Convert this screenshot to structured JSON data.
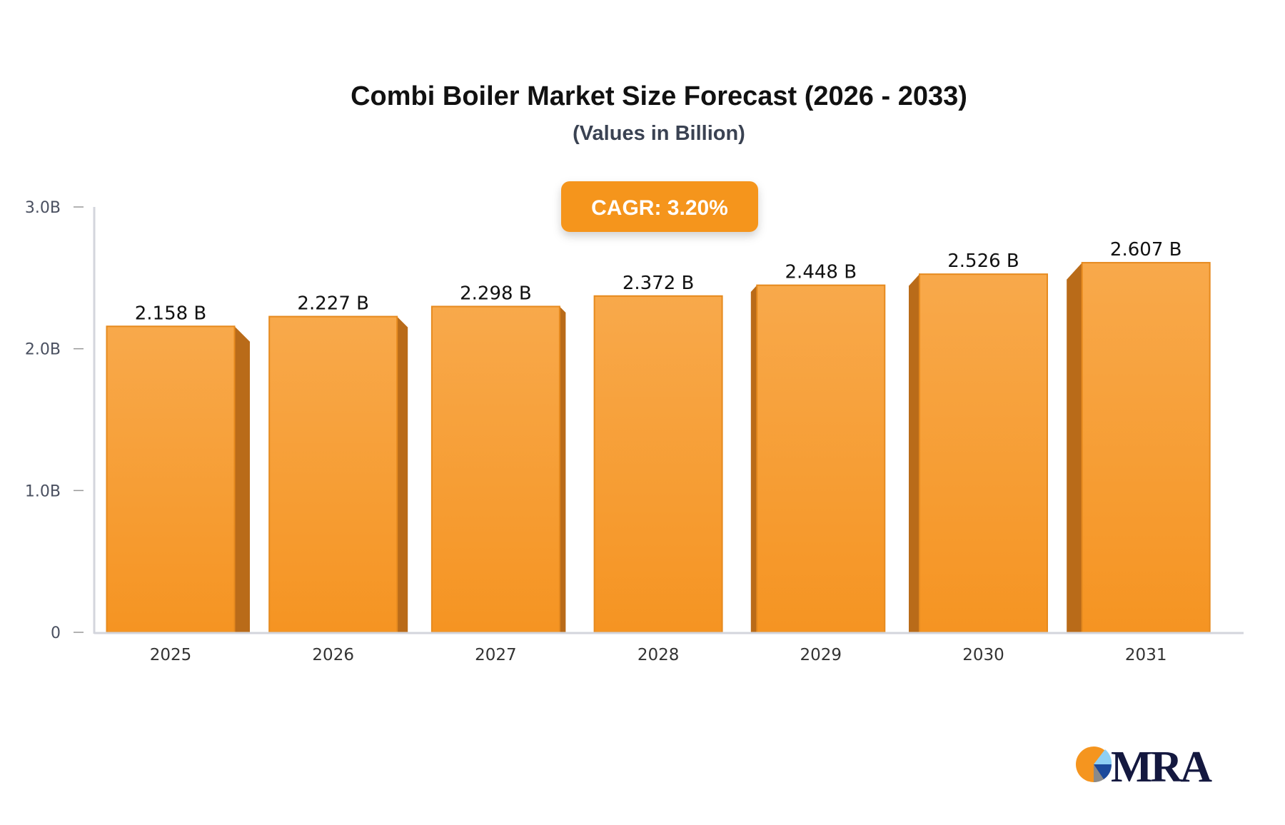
{
  "chart_data": {
    "type": "bar",
    "title": "Combi Boiler Market Size Forecast (2026 - 2033)",
    "subtitle": "(Values in Billion)",
    "annotation": "CAGR: 3.20%",
    "categories": [
      "2025",
      "2026",
      "2027",
      "2028",
      "2029",
      "2030",
      "2031"
    ],
    "values": [
      2.158,
      2.227,
      2.298,
      2.372,
      2.448,
      2.526,
      2.607
    ],
    "data_labels": [
      "2.158 B",
      "2.227 B",
      "2.298 B",
      "2.372 B",
      "2.448 B",
      "2.526 B",
      "2.607 B"
    ],
    "ylim": [
      0,
      3.0
    ],
    "yticks": [
      0,
      1.0,
      2.0,
      3.0
    ],
    "ytick_labels": [
      "0",
      "1.0B",
      "2.0B",
      "3.0B"
    ],
    "xlabel": "",
    "ylabel": "",
    "grid": false,
    "colors": {
      "bar_top": "#f8a94b",
      "bar_bottom": "#f59422",
      "bar_side": "#b96b19",
      "badge": "#f5951f",
      "axis": "#d3d5dc"
    }
  },
  "logo": {
    "text": "MRA",
    "colors": [
      "#f5951f",
      "#8fd0f5",
      "#1c4a9c",
      "#8a8a8a",
      "#14183f"
    ]
  }
}
